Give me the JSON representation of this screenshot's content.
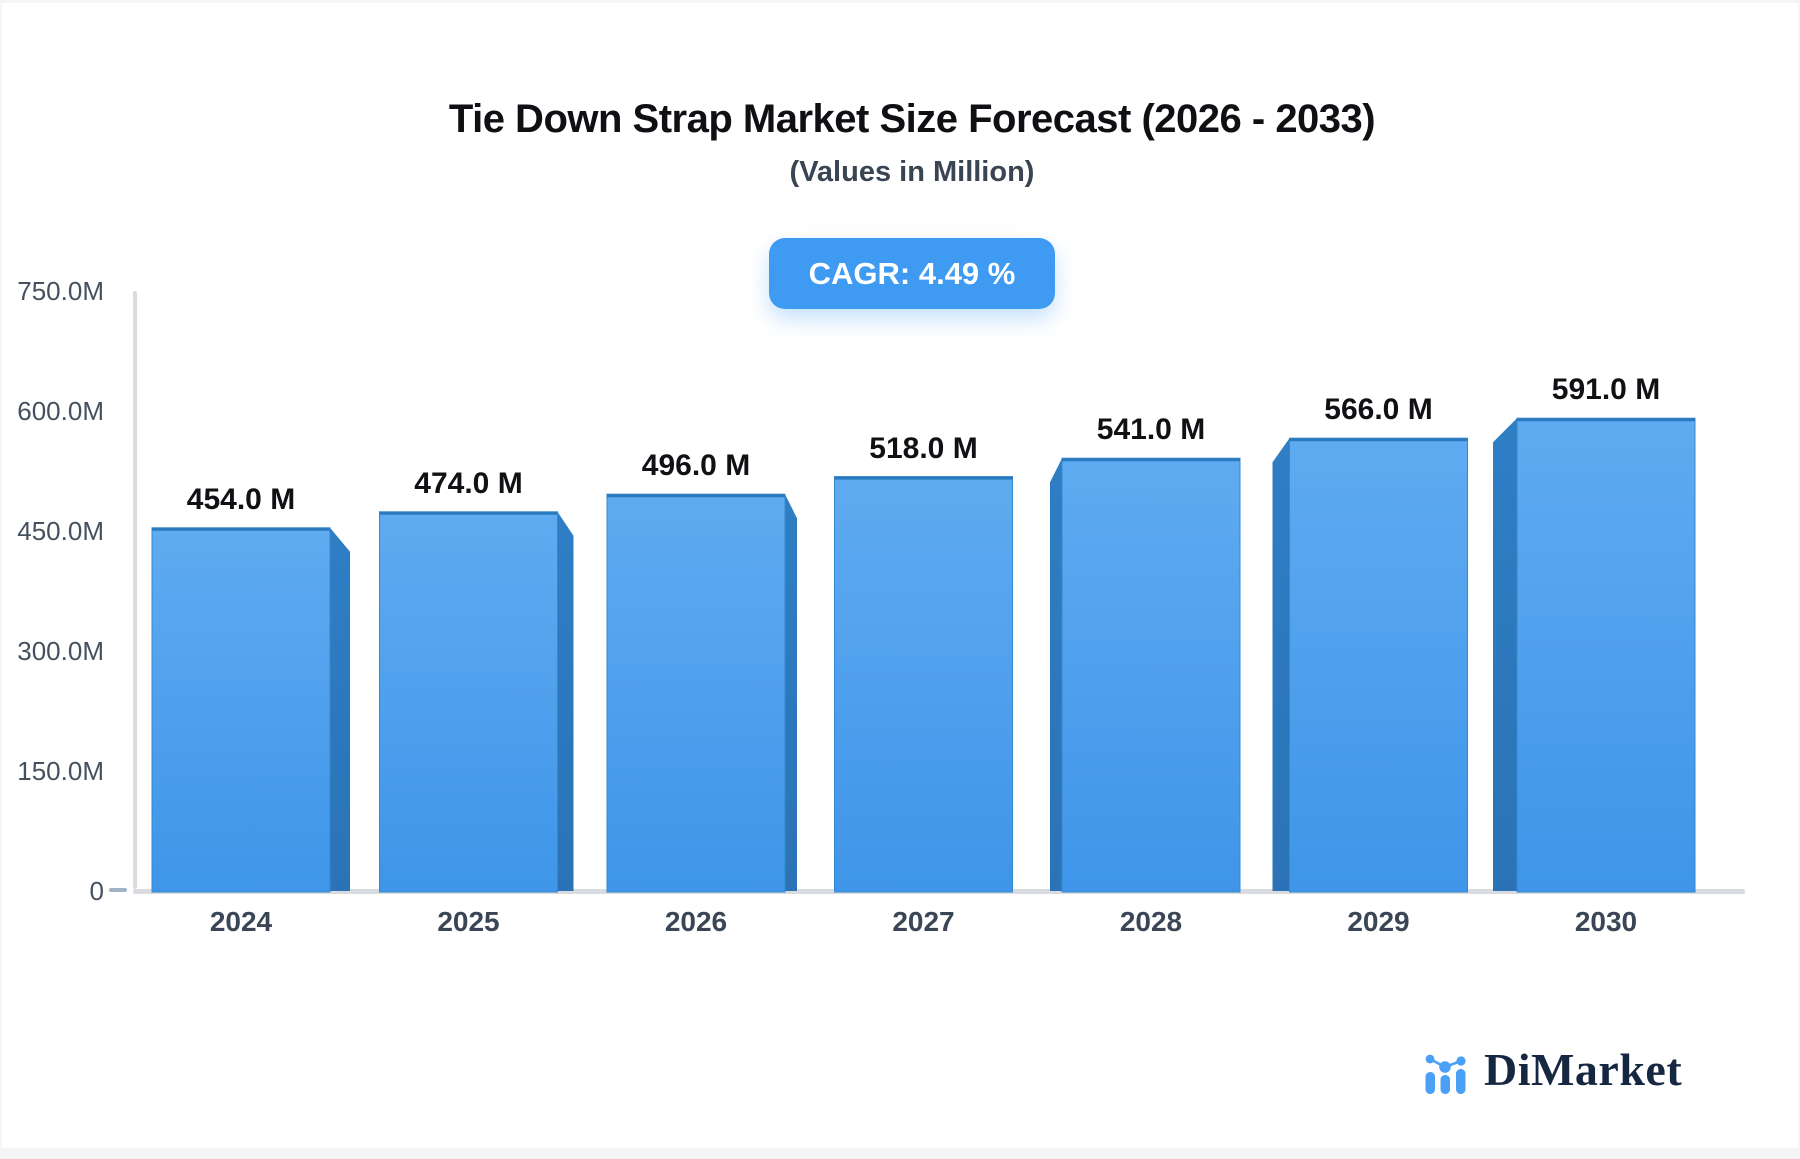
{
  "header": {
    "title": "Tie Down Strap Market Size Forecast (2026 - 2033)",
    "subtitle": "(Values in Million)",
    "cagr_badge": "CAGR: 4.49 %"
  },
  "chart_data": {
    "type": "bar",
    "title": "Tie Down Strap Market Size Forecast (2026 - 2033)",
    "subtitle": "(Values in Million)",
    "cagr": "4.49 %",
    "categories": [
      "2024",
      "2025",
      "2026",
      "2027",
      "2028",
      "2029",
      "2030"
    ],
    "values": [
      454,
      474,
      496,
      518,
      541,
      566,
      591
    ],
    "value_labels": [
      "454.0 M",
      "474.0 M",
      "496.0 M",
      "518.0 M",
      "541.0 M",
      "566.0 M",
      "591.0 M"
    ],
    "y_ticks": [
      {
        "label": "750.0M",
        "value": 750
      },
      {
        "label": "600.0M",
        "value": 600
      },
      {
        "label": "450.0M",
        "value": 450
      },
      {
        "label": "300.0M",
        "value": 300
      },
      {
        "label": "150.0M",
        "value": 150
      },
      {
        "label": "0",
        "value": 0
      }
    ],
    "ylim": [
      0,
      750
    ],
    "xlabel": "",
    "ylabel": "",
    "grid": false,
    "legend": false,
    "colors": {
      "bar_face_top": "#5fabf1",
      "bar_face_bottom": "#3f95e9",
      "bar_side_top": "#2f7ec5",
      "bar_side_bottom": "#2b73b6",
      "bar_edge": "#2b7ac0",
      "axis": "#d8dce1",
      "accent": "#3f9bf1"
    }
  },
  "footer": {
    "brand_name": "DiMarket"
  }
}
